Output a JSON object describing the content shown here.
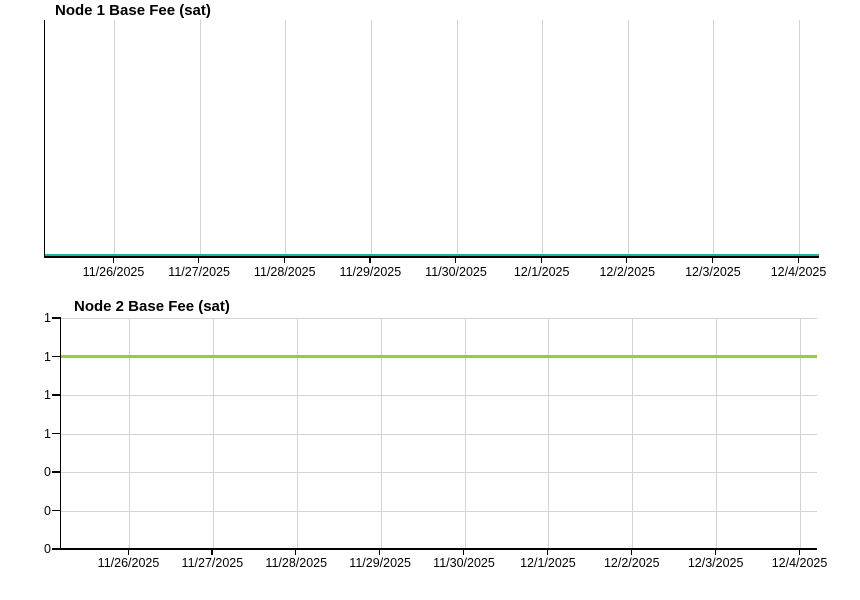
{
  "colors": {
    "background": "#ffffff",
    "axis": "#000000",
    "gridline": "#d3d3d3",
    "text": "#000000",
    "node1_line": "#20b2aa",
    "node2_line": "#9acd32"
  },
  "chart_data": [
    {
      "type": "line",
      "title": "Node 1 Base Fee (sat)",
      "xlabel": "",
      "ylabel": "",
      "x": [
        "11/26/2025",
        "11/27/2025",
        "11/28/2025",
        "11/29/2025",
        "11/30/2025",
        "12/1/2025",
        "12/2/2025",
        "12/3/2025",
        "12/4/2025"
      ],
      "series": [
        {
          "name": "Node 1 Base Fee (sat)",
          "color": "#20b2aa",
          "values": [
            0,
            0,
            0,
            0,
            0,
            0,
            0,
            0,
            0
          ]
        }
      ],
      "constant_value": 0,
      "y_tick_labels": [],
      "grid": "vertical-only",
      "legend": "none",
      "note": "flat line drawn along the bottom x-axis; no y-axis tick labels shown"
    },
    {
      "type": "line",
      "title": "Node 2 Base Fee (sat)",
      "xlabel": "",
      "ylabel": "",
      "x": [
        "11/26/2025",
        "11/27/2025",
        "11/28/2025",
        "11/29/2025",
        "11/30/2025",
        "12/1/2025",
        "12/2/2025",
        "12/3/2025",
        "12/4/2025"
      ],
      "series": [
        {
          "name": "Node 2 Base Fee (sat)",
          "color": "#9acd32",
          "values": [
            1,
            1,
            1,
            1,
            1,
            1,
            1,
            1,
            1
          ]
        }
      ],
      "constant_value": 1,
      "ylim": [
        0,
        1.2
      ],
      "y_tick_labels": [
        "1",
        "1",
        "1",
        "1",
        "0",
        "0",
        "0"
      ],
      "y_tick_values": [
        1.2,
        1.0,
        0.8,
        0.6,
        0.4,
        0.2,
        0
      ],
      "line_at_tick_index": 1,
      "grid": "both",
      "legend": "none",
      "note": "flat line at value 1, second gridline from top"
    }
  ]
}
